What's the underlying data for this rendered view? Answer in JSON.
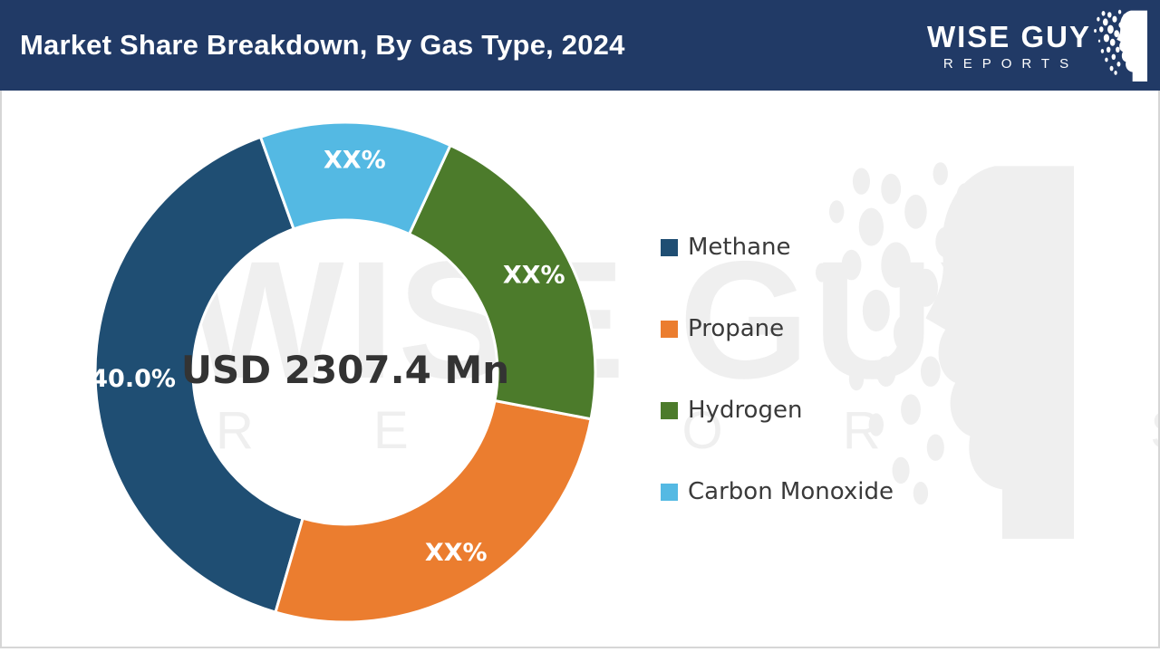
{
  "header": {
    "title": "Market Share Breakdown, By Gas Type, 2024",
    "logo": {
      "brand": "WISE GUY",
      "sub": "REPORTS",
      "icon": "face-profile-dots-icon"
    }
  },
  "watermark": {
    "brand": "WISE GUY",
    "sub": "R E P O R T S",
    "icon": "face-profile-dots-icon"
  },
  "chart_data": {
    "type": "pie",
    "title": "Market Share Breakdown, By Gas Type, 2024",
    "donut": true,
    "center_label": "USD 2307.4 Mn",
    "start_angle_deg": 109.8,
    "direction": "counterclockwise",
    "legend_position": "right",
    "slices": [
      {
        "name": "Methane",
        "label": "40.0%",
        "value_pct": 40.0,
        "color": "#1f4e73"
      },
      {
        "name": "Propane",
        "label": "XX%",
        "value_pct": 26.5,
        "color": "#eb7d2f"
      },
      {
        "name": "Hydrogen",
        "label": "XX%",
        "value_pct": 21.1,
        "color": "#4c7b2b"
      },
      {
        "name": "Carbon Monoxide",
        "label": "XX%",
        "value_pct": 12.4,
        "color": "#54b9e3"
      }
    ],
    "colors": {
      "header_bg": "#213a66",
      "center_text": "#333333",
      "legend_text": "#3a3a3a",
      "watermark": "#efefef",
      "slice_border": "#ffffff"
    }
  }
}
